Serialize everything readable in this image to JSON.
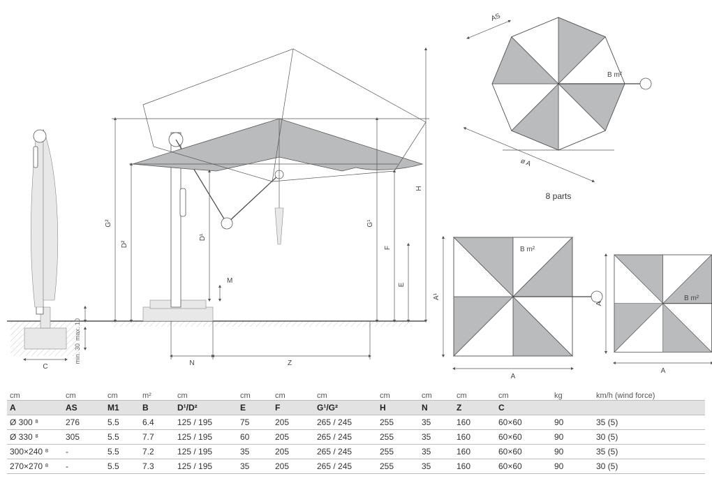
{
  "colors": {
    "background": "#ffffff",
    "line": "#555555",
    "shade_gray": "#b9bbbd",
    "header_bg": "#e2e2e2",
    "text": "#333333",
    "border": "#bdbdbd"
  },
  "side_view": {
    "labels": {
      "C": "C",
      "max10": "max. 10",
      "min30": "min. 30",
      "G2": "G²",
      "D2": "D²",
      "D1": "D¹",
      "M": "M",
      "N": "N",
      "Z": "Z",
      "G1": "G¹",
      "F": "F",
      "E": "E",
      "H": "H"
    }
  },
  "octagon": {
    "labels": {
      "AS": "AS",
      "Bm2": "B m²",
      "diamA": "ø A"
    },
    "caption": "8 parts",
    "segments": 8,
    "alt_colors": [
      "#b9bbbd",
      "#ffffff"
    ]
  },
  "square1": {
    "labels": {
      "A_side": "A¹",
      "A_bottom": "A",
      "Bm2": "B m²"
    },
    "alt_colors": [
      "#b9bbbd",
      "#ffffff"
    ]
  },
  "square2": {
    "labels": {
      "A_side": "A",
      "A_bottom": "A",
      "Bm2": "B m²"
    },
    "alt_colors": [
      "#b9bbbd",
      "#ffffff"
    ]
  },
  "table": {
    "units": [
      "cm",
      "cm",
      "cm",
      "m²",
      "cm",
      "cm",
      "cm",
      "cm",
      "cm",
      "cm",
      "cm",
      "cm",
      "kg",
      "km/h (wind force)"
    ],
    "headers": [
      "A",
      "AS",
      "M1",
      "B",
      "D¹/D²",
      "E",
      "F",
      "G¹/G²",
      "H",
      "N",
      "Z",
      "C",
      "",
      ""
    ],
    "header_last_merge": false,
    "col_widths_pct": [
      8,
      6,
      5,
      5,
      9,
      5,
      6,
      9,
      6,
      5,
      6,
      8,
      6,
      16
    ],
    "rows": [
      [
        "Ø 300 ⁸",
        "276",
        "5.5",
        "6.4",
        "125 / 195",
        "75",
        "205",
        "265 / 245",
        "255",
        "35",
        "160",
        "60×60",
        "90",
        "35 (5)"
      ],
      [
        "Ø 330 ⁸",
        "305",
        "5.5",
        "7.7",
        "125 / 195",
        "60",
        "205",
        "265 / 245",
        "255",
        "35",
        "160",
        "60×60",
        "90",
        "30 (5)"
      ],
      [
        "300×240 ⁸",
        "-",
        "5.5",
        "7.2",
        "125 / 195",
        "35",
        "205",
        "265 / 245",
        "255",
        "35",
        "160",
        "60×60",
        "90",
        "35 (5)"
      ],
      [
        "270×270 ⁸",
        "-",
        "5.5",
        "7.3",
        "125 / 195",
        "35",
        "205",
        "265 / 245",
        "255",
        "35",
        "160",
        "60×60",
        "90",
        "30 (5)"
      ]
    ]
  }
}
